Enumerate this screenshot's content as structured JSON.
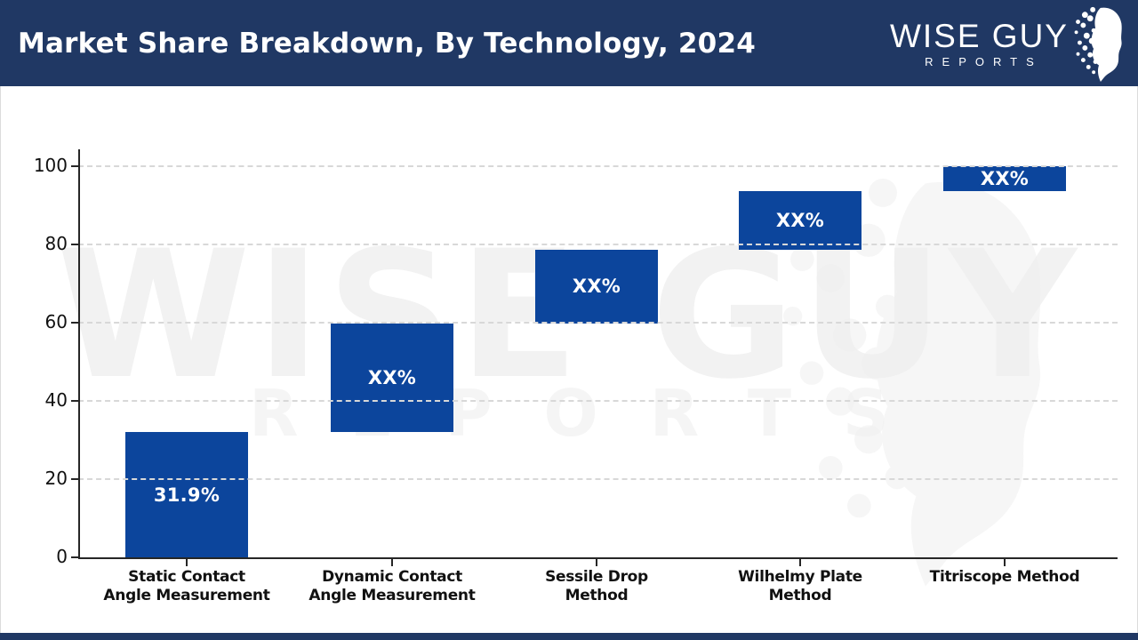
{
  "header": {
    "title": "Market Share Breakdown, By Technology, 2024",
    "logo": {
      "line1": "WISE GUY",
      "line2": "REPORTS"
    }
  },
  "watermark": {
    "line1": "WISE GUY",
    "line2": "REPORTS"
  },
  "colors": {
    "header_bg": "#203864",
    "bar": "#0c459c",
    "bar_label": "#ffffff",
    "gridline": "#d8d8d8",
    "axis": "#262626"
  },
  "chart_data": {
    "type": "bar",
    "subtype": "waterfall",
    "title": "Market Share Breakdown, By Technology, 2024",
    "xlabel": "",
    "ylabel": "",
    "ylim": [
      0,
      105
    ],
    "yticks": [
      0,
      20,
      40,
      60,
      80,
      100
    ],
    "grid": "horizontal-dashed-over-bars",
    "legend": "none",
    "categories": [
      [
        "Static Contact",
        "Angle Measurement"
      ],
      [
        "Dynamic Contact",
        "Angle Measurement"
      ],
      [
        "Sessile Drop",
        "Method"
      ],
      [
        "Wilhelmy Plate",
        "Method"
      ],
      [
        "Titriscope Method"
      ]
    ],
    "segments": [
      {
        "label": "31.9%",
        "start": 0,
        "end": 31.9
      },
      {
        "label": "XX%",
        "start": 31.9,
        "end": 59.8
      },
      {
        "label": "XX%",
        "start": 59.8,
        "end": 78.5
      },
      {
        "label": "XX%",
        "start": 78.5,
        "end": 93.5
      },
      {
        "label": "XX%",
        "start": 93.5,
        "end": 100
      }
    ]
  }
}
